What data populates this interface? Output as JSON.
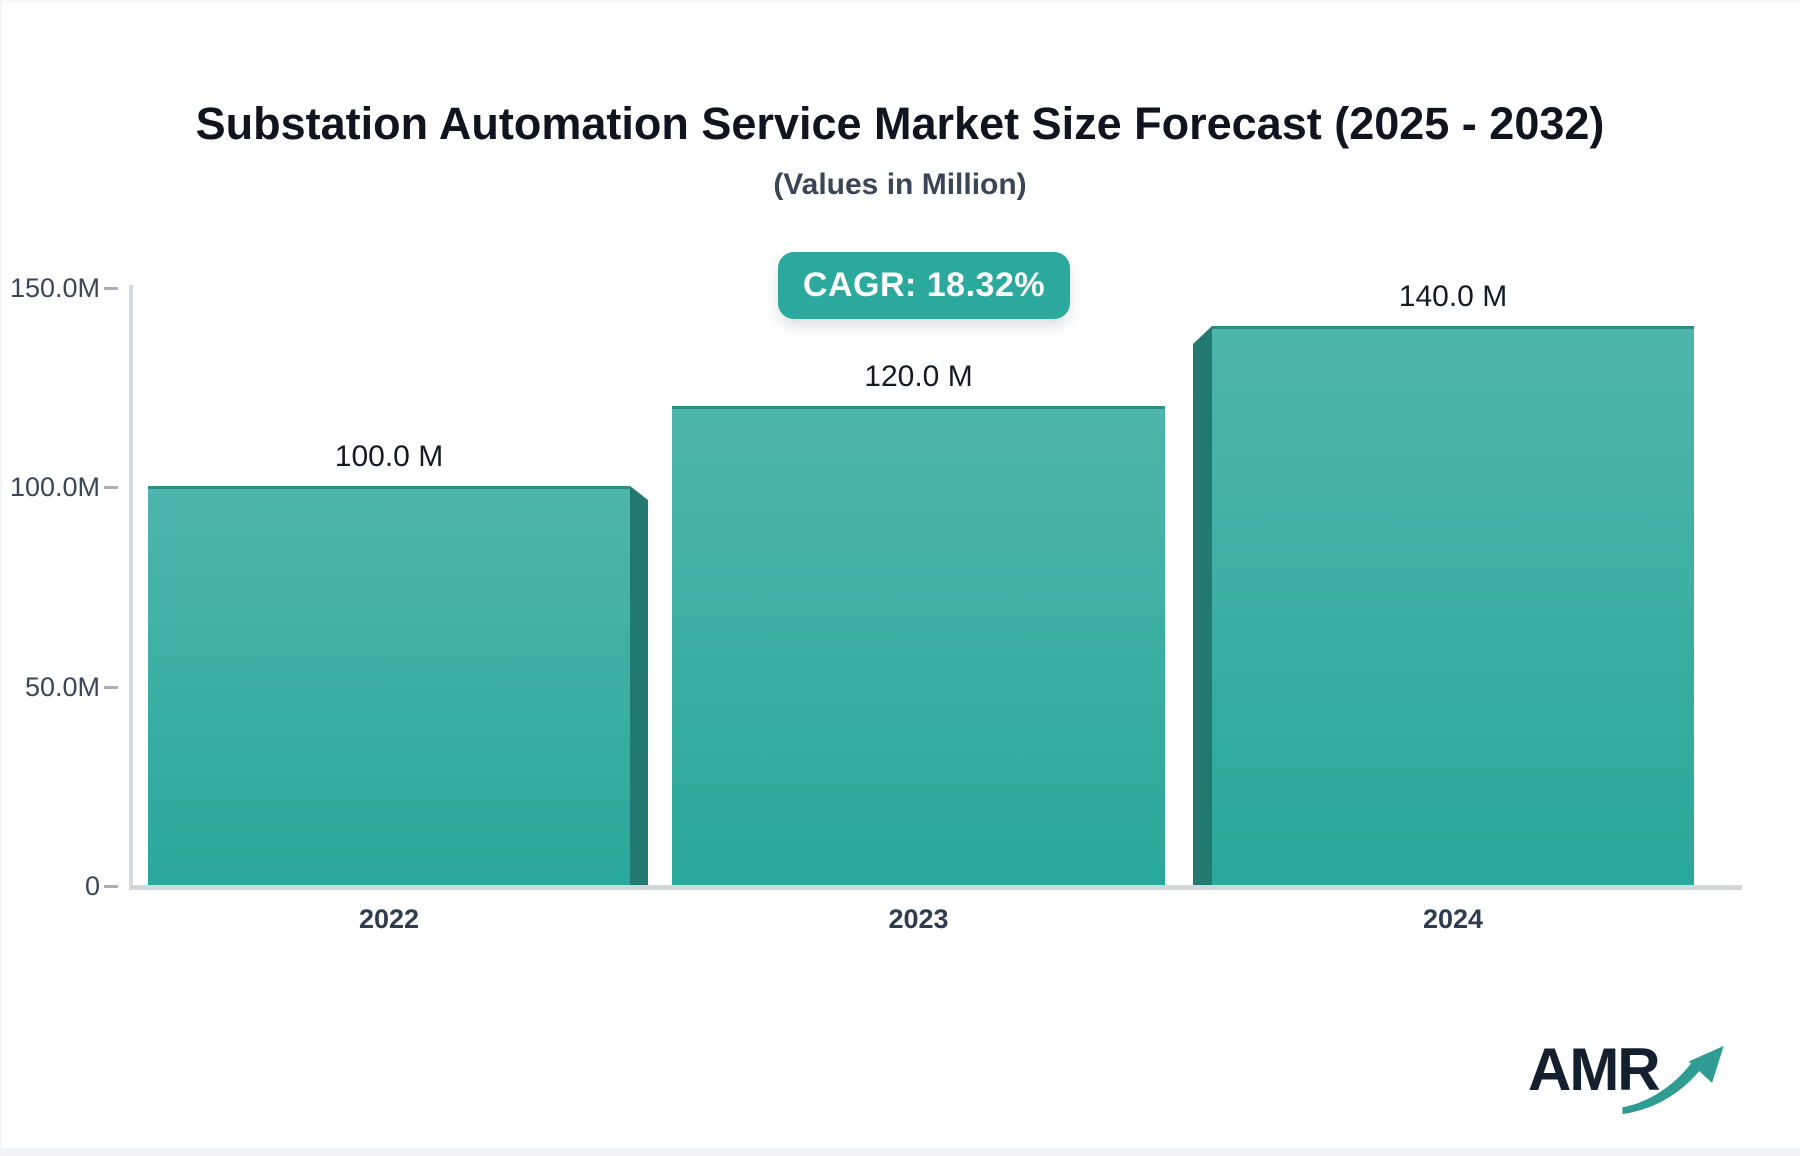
{
  "page": {
    "title": "Substation Automation Service Market Size Forecast (2025 - 2032)",
    "subtitle": "(Values in Million)",
    "cagr_label": "CAGR: 18.32%",
    "logo_text": "AMR"
  },
  "chart_data": {
    "type": "bar",
    "title": "Substation Automation Service Market Size Forecast (2025 - 2032)",
    "subtitle": "(Values in Million)",
    "unit": "Million",
    "cagr": "18.32%",
    "categories": [
      "2022",
      "2023",
      "2024"
    ],
    "values": [
      100.0,
      120.0,
      140.0
    ],
    "value_labels": [
      "100.0 M",
      "120.0 M",
      "140.0 M"
    ],
    "ylim": [
      0,
      150
    ],
    "yticks": [
      {
        "label": "150.0M",
        "value": 150
      },
      {
        "label": "100.0M",
        "value": 100
      },
      {
        "label": "50.0M",
        "value": 50
      },
      {
        "label": "0",
        "value": 0
      }
    ],
    "grid": false,
    "legend": "none",
    "bar_style": "3d-extruded",
    "colors": {
      "bar_face_top": "#4db5ab",
      "bar_face_bottom": "#2aa89b",
      "bar_side": "#21796f",
      "bar_top_edge": "#2e8e85",
      "badge": "#2aa99c",
      "axis_line": "#d5d8df",
      "axis_text": "#3a4759",
      "title_text": "#10141f"
    }
  }
}
